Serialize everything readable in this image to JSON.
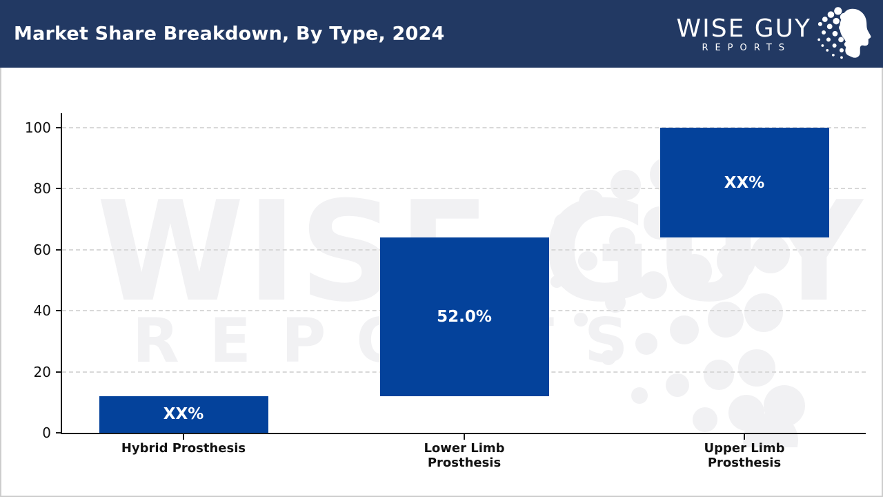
{
  "header": {
    "title": "Market Share Breakdown, By Type, 2024",
    "logo": {
      "primary": "WISE GUY",
      "secondary": "REPORTS"
    }
  },
  "watermark": {
    "primary": "WISE GUY",
    "secondary": "REPORTS"
  },
  "chart_data": {
    "type": "bar",
    "subtype": "waterfall-segmented",
    "title": "Market Share Breakdown, By Type, 2024",
    "xlabel": "",
    "ylabel": "",
    "ylim": [
      0,
      100
    ],
    "yticks": [
      0,
      20,
      40,
      60,
      80,
      100
    ],
    "grid": {
      "horizontal": true,
      "style": "dashed"
    },
    "legend": null,
    "bar_color": "#04429B",
    "bars": [
      {
        "category": "Hybrid Prosthesis",
        "category_display": "Hybrid Prosthesis",
        "start": 0,
        "end": 12,
        "estimated_value": 12,
        "label": "XX%"
      },
      {
        "category": "Lower Limb Prosthesis",
        "category_display": "Lower Limb\nProsthesis",
        "start": 12,
        "end": 64,
        "estimated_value": 52,
        "label": "52.0%"
      },
      {
        "category": "Upper Limb Prosthesis",
        "category_display": "Upper Limb\nProsthesis",
        "start": 64,
        "end": 100,
        "estimated_value": 36,
        "label": "XX%"
      }
    ]
  },
  "colors": {
    "header_bg": "#223963",
    "bar": "#04429B",
    "title_text": "#FFFFFF",
    "axis": "#1A1A1A",
    "gridline": "#D8D8D8",
    "watermark": "#F1F1F3"
  }
}
